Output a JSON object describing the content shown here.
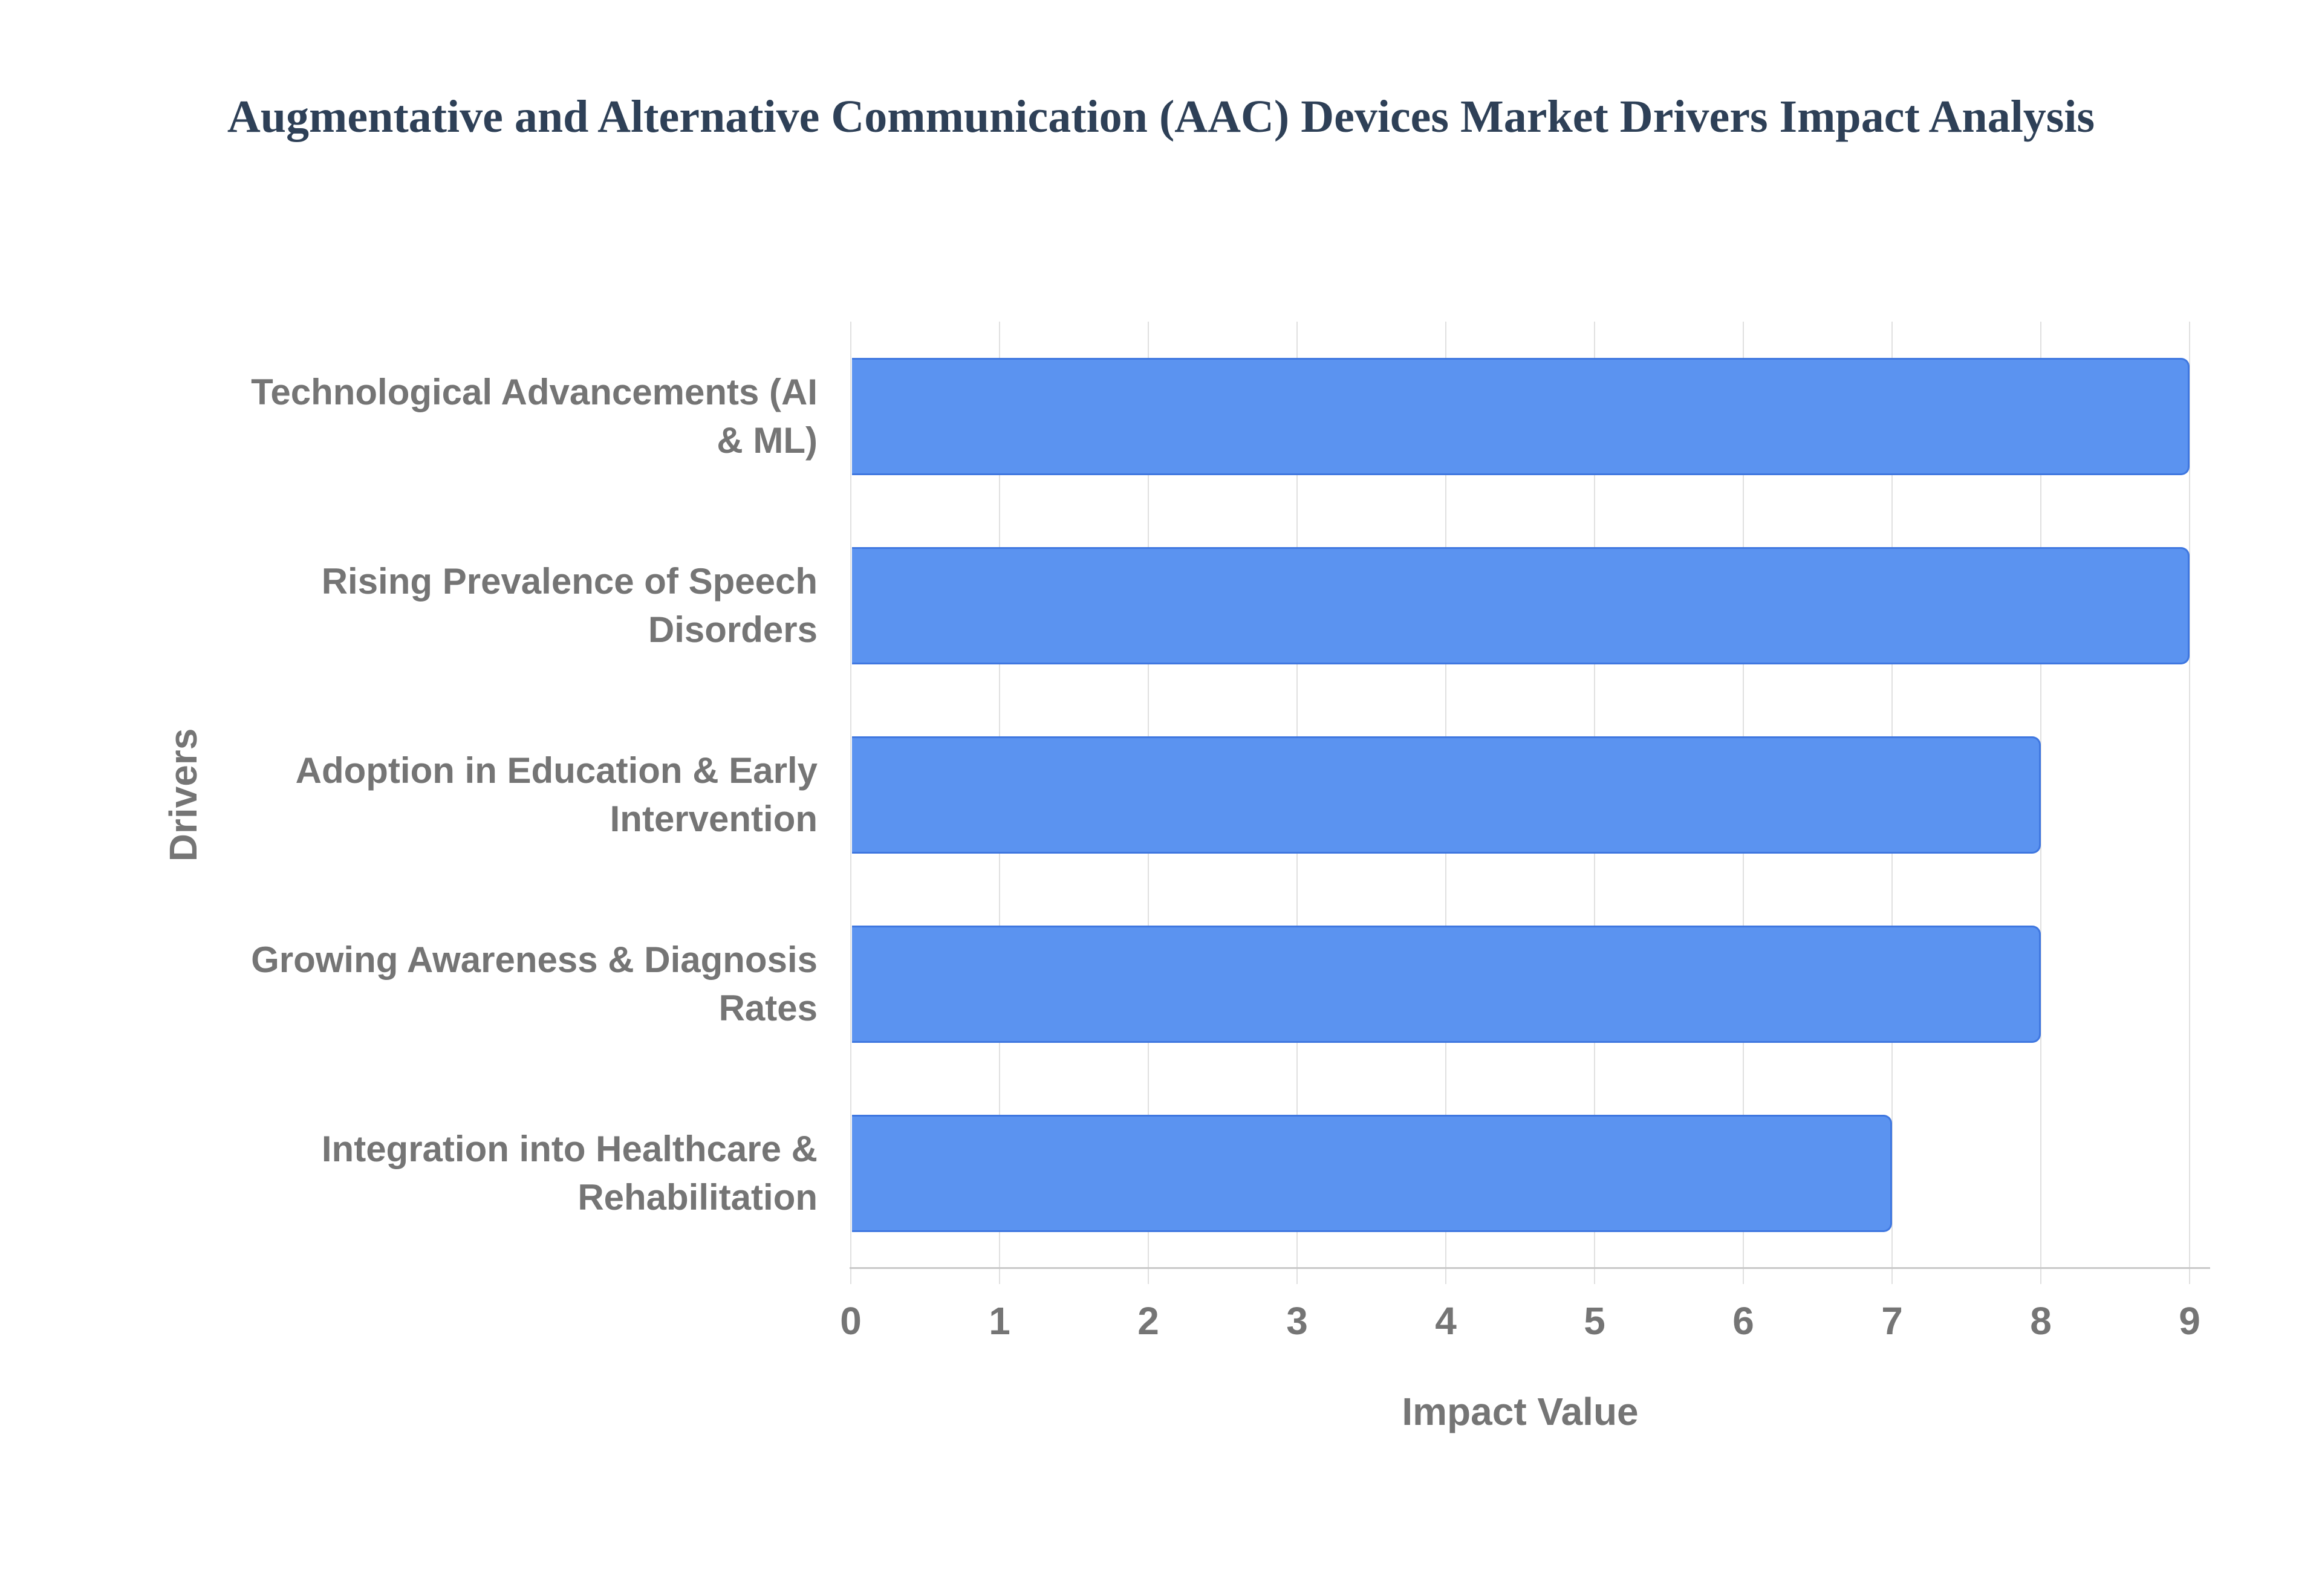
{
  "title": "Augmentative and Alternative Communication (AAC) Devices Market Drivers Impact Analysis",
  "chart_data": {
    "type": "bar",
    "orientation": "horizontal",
    "title": "Augmentative and Alternative Communication (AAC) Devices Market Drivers Impact Analysis",
    "categories": [
      "Technological Advancements (AI & ML)",
      "Rising Prevalence of Speech Disorders",
      "Adoption in Education & Early Intervention",
      "Growing Awareness & Diagnosis Rates",
      "Integration into Healthcare & Rehabilitation"
    ],
    "category_lines": [
      [
        "Technological Advancements (AI",
        "& ML)"
      ],
      [
        "Rising Prevalence of Speech",
        "Disorders"
      ],
      [
        "Adoption in Education & Early",
        "Intervention"
      ],
      [
        "Growing Awareness & Diagnosis",
        "Rates"
      ],
      [
        "Integration into Healthcare &",
        "Rehabilitation"
      ]
    ],
    "values": [
      9,
      9,
      8,
      8,
      7
    ],
    "xlabel": "Impact Value",
    "ylabel": "Drivers",
    "xlim": [
      0,
      9
    ],
    "xticks": [
      0,
      1,
      2,
      3,
      4,
      5,
      6,
      7,
      8,
      9
    ],
    "grid": true,
    "legend": "none"
  },
  "colors": {
    "title_text": "#2e4057",
    "axis_text": "#757575",
    "gridline": "#e0e0e0",
    "baseline": "#c9c9c9",
    "bar_fill": "#5b93f0",
    "bar_border": "#3f77e0",
    "background": "#ffffff"
  }
}
